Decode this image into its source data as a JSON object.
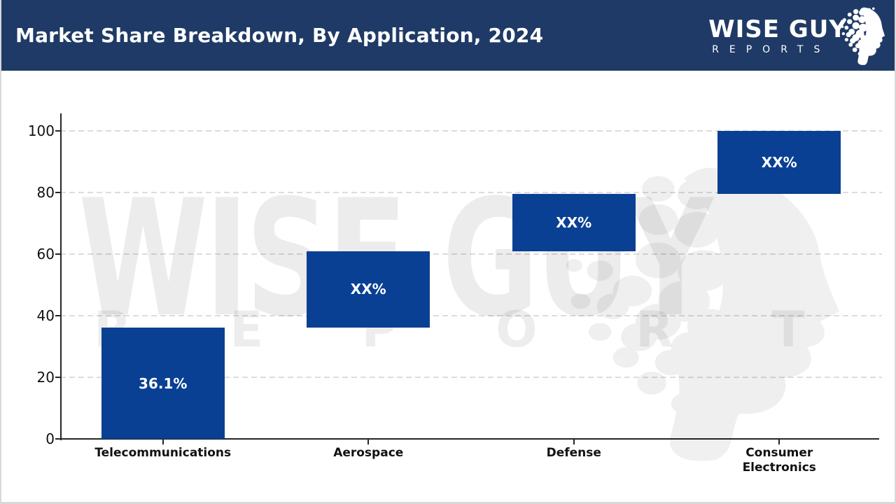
{
  "header": {
    "title": "Market Share Breakdown, By Application, 2024",
    "bg_color": "#1f3a66",
    "text_color": "#ffffff",
    "logo": {
      "line1": "WISE GUY",
      "line2": "REPORTS",
      "face_icon": "dotted-head-profile"
    }
  },
  "watermark": {
    "line1": "WISE GUY",
    "line2": "R E P O R T S",
    "face_icon": "dotted-head-profile"
  },
  "chart_data": {
    "type": "bar",
    "subtype": "waterfall",
    "title": "Market Share Breakdown, By Application, 2024",
    "xlabel": "",
    "ylabel": "",
    "ylim": [
      0,
      100
    ],
    "yticks": [
      0,
      20,
      40,
      60,
      80,
      100
    ],
    "grid": "horizontal-dashed",
    "legend": "none",
    "bar_color": "#0a4093",
    "bar_label_color": "#ffffff",
    "axis_color": "#262626",
    "categories": [
      "Telecommunications",
      "Aerospace",
      "Defense",
      "Consumer\nElectronics"
    ],
    "segments": [
      {
        "category": "Telecommunications",
        "start": 0,
        "end": 36.1,
        "label": "36.1%"
      },
      {
        "category": "Aerospace",
        "start": 36.1,
        "end": 61.0,
        "label": "XX%"
      },
      {
        "category": "Defense",
        "start": 61.0,
        "end": 79.5,
        "label": "XX%"
      },
      {
        "category": "Consumer Electronics",
        "start": 79.5,
        "end": 100.0,
        "label": "XX%"
      }
    ]
  }
}
